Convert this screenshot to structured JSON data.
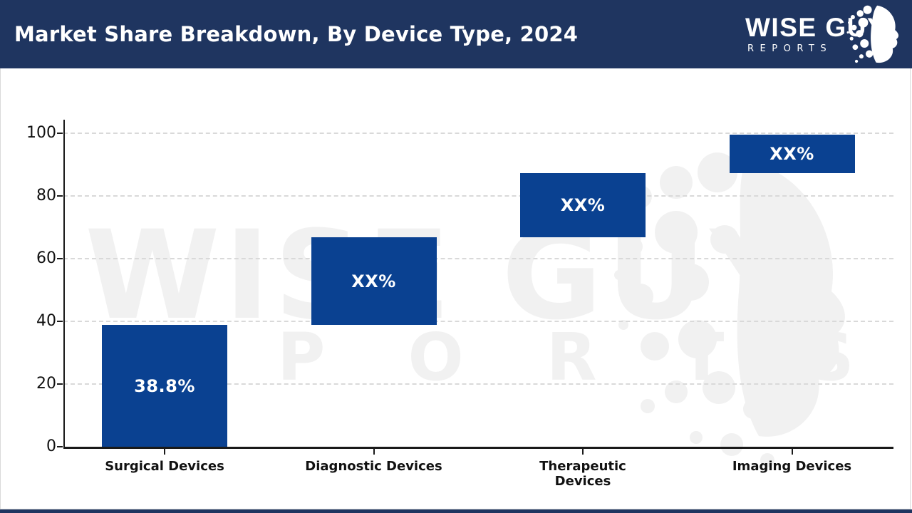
{
  "header": {
    "title": "Market Share Breakdown, By Device Type, 2024",
    "logo": {
      "line1": "WISE GUY",
      "line2": "REPORTS",
      "head_icon": "dotted-head-profile"
    }
  },
  "watermark": {
    "line1": "WISE GUY",
    "line2": "P O R T S",
    "head_icon": "dotted-head-profile"
  },
  "colors": {
    "header_navy": "#1f3560",
    "bar_blue": "#0a4191",
    "gridline_gray": "#d9d9d9",
    "watermark_gray": "#f1f1f1",
    "text_black": "#111111",
    "label_white": "#ffffff"
  },
  "chart_data": {
    "type": "bar",
    "subtype": "waterfall",
    "title": "Market Share Breakdown, By Device Type, 2024",
    "xlabel": "",
    "ylabel": "",
    "ylim": [
      0,
      105
    ],
    "yticks": [
      0,
      20,
      40,
      60,
      80,
      100
    ],
    "grid": "horizontal-dashed",
    "legend": "none",
    "categories": [
      "Surgical Devices",
      "Diagnostic Devices",
      "Therapeutic\nDevices",
      "Imaging Devices"
    ],
    "points": [
      {
        "category": "Surgical Devices",
        "start": 0,
        "end": 38.8,
        "label": "38.8%"
      },
      {
        "category": "Diagnostic Devices",
        "start": 38.8,
        "end": 66.8,
        "label": "XX%"
      },
      {
        "category": "Therapeutic\nDevices",
        "start": 66.8,
        "end": 87.3,
        "label": "XX%"
      },
      {
        "category": "Imaging Devices",
        "start": 87.3,
        "end": 99.5,
        "label": "XX%"
      }
    ]
  }
}
